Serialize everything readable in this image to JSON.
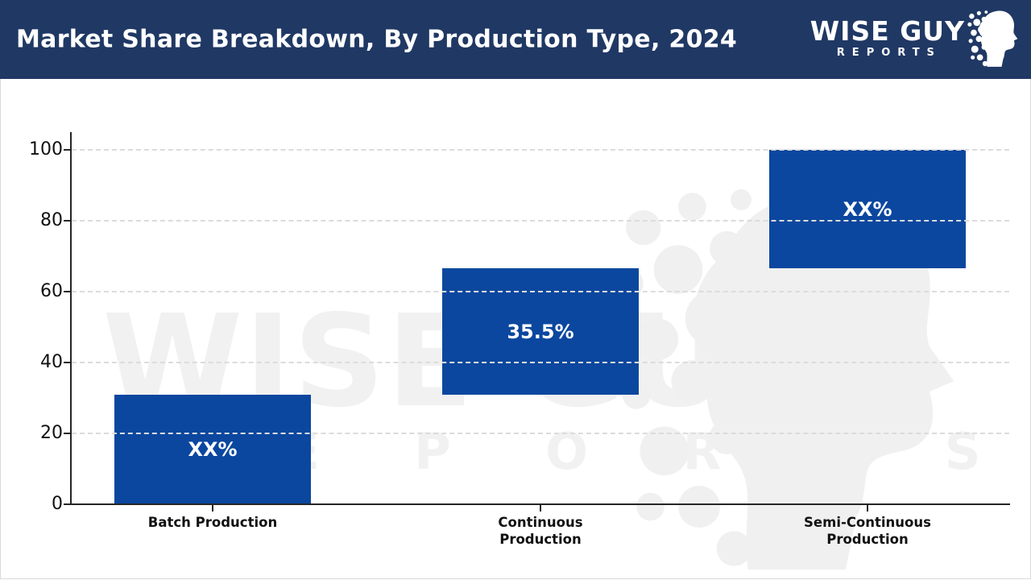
{
  "header": {
    "title": "Market Share Breakdown, By Production Type, 2024"
  },
  "logo": {
    "line1": "WISE GUY",
    "line2": "REPORTS"
  },
  "watermark": {
    "line1": "WISE GUY",
    "line2": "R E P O R T S"
  },
  "chart_data": {
    "type": "bar",
    "subtype": "floating-segment-waterfall",
    "title": "Market Share Breakdown, By Production Type, 2024",
    "categories": [
      "Batch Production",
      "Continuous Production",
      "Semi-Continuous Production"
    ],
    "category_lines": [
      [
        "Batch Production",
        ""
      ],
      [
        "Continuous",
        "Production"
      ],
      [
        "Semi-Continuous",
        "Production"
      ]
    ],
    "segments": [
      {
        "category": "Batch Production",
        "start": 0,
        "end": 31,
        "value_label": "XX%"
      },
      {
        "category": "Continuous Production",
        "start": 31,
        "end": 66.5,
        "value_label": "35.5%"
      },
      {
        "category": "Semi-Continuous Production",
        "start": 66.5,
        "end": 100,
        "value_label": "XX%"
      }
    ],
    "ylim": [
      0,
      100
    ],
    "yticks": [
      0,
      20,
      40,
      60,
      80,
      100
    ],
    "grid": "horizontal-dashed",
    "legend": "none",
    "bar_color": "#0b479f",
    "value_label_color": "#ffffff"
  },
  "colors": {
    "header_bg": "#203864",
    "bar": "#0b479f",
    "watermark": "#f1f1f1",
    "axis": "#262626",
    "grid": "#dcdcdc",
    "figure_border": "#d9d9d9"
  }
}
